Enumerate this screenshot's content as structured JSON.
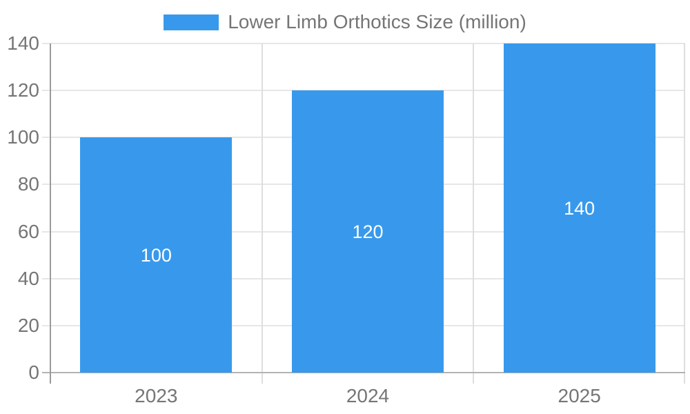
{
  "chart_data": {
    "type": "bar",
    "title": "",
    "xlabel": "",
    "ylabel": "",
    "legend": "Lower Limb Orthotics Size (million)",
    "legend_position": "top",
    "categories": [
      "2023",
      "2024",
      "2025"
    ],
    "series": [
      {
        "name": "Lower Limb Orthotics Size (million)",
        "values": [
          100,
          120,
          140
        ],
        "data_labels": [
          "100",
          "120",
          "140"
        ]
      }
    ],
    "ylim": [
      0,
      140
    ],
    "yticks": [
      0,
      20,
      40,
      60,
      80,
      100,
      120,
      140
    ],
    "ytick_labels": [
      "0",
      "20",
      "40",
      "60",
      "80",
      "100",
      "120",
      "140"
    ],
    "grid": true,
    "colors": {
      "bar": "#3899ec",
      "data_label": "#ffffff",
      "axis_text": "#757575",
      "gridline": "#e6e6e6",
      "axis_line": "#9a9a9a",
      "baseline": "#b3b3b3",
      "boundary_line": "#dedede"
    }
  }
}
